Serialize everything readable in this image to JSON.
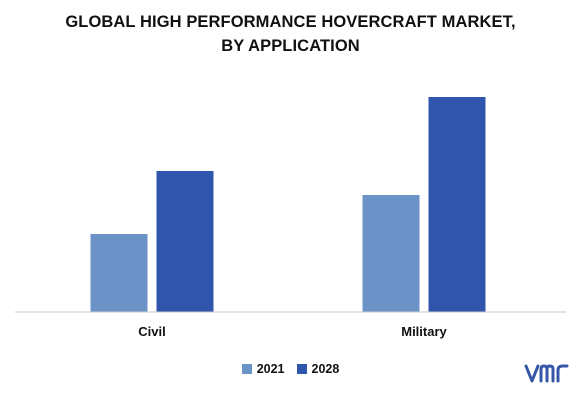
{
  "chart_data": {
    "type": "bar",
    "title_lines": [
      "GLOBAL HIGH PERFORMANCE HOVERCRAFT MARKET,",
      "BY APPLICATION"
    ],
    "categories": [
      "Civil",
      "Military"
    ],
    "series": [
      {
        "name": "2021",
        "color": "#6c93c8",
        "values": [
          78,
          117
        ]
      },
      {
        "name": "2028",
        "color": "#2f55ad",
        "values": [
          141,
          215
        ]
      }
    ],
    "ylim": [
      0,
      230
    ],
    "y_axis_shown": false,
    "grid": false,
    "legend_position": "bottom"
  },
  "logo": {
    "icon": "vmr-logo-icon",
    "text": "vmr",
    "color": "#3557a8"
  }
}
